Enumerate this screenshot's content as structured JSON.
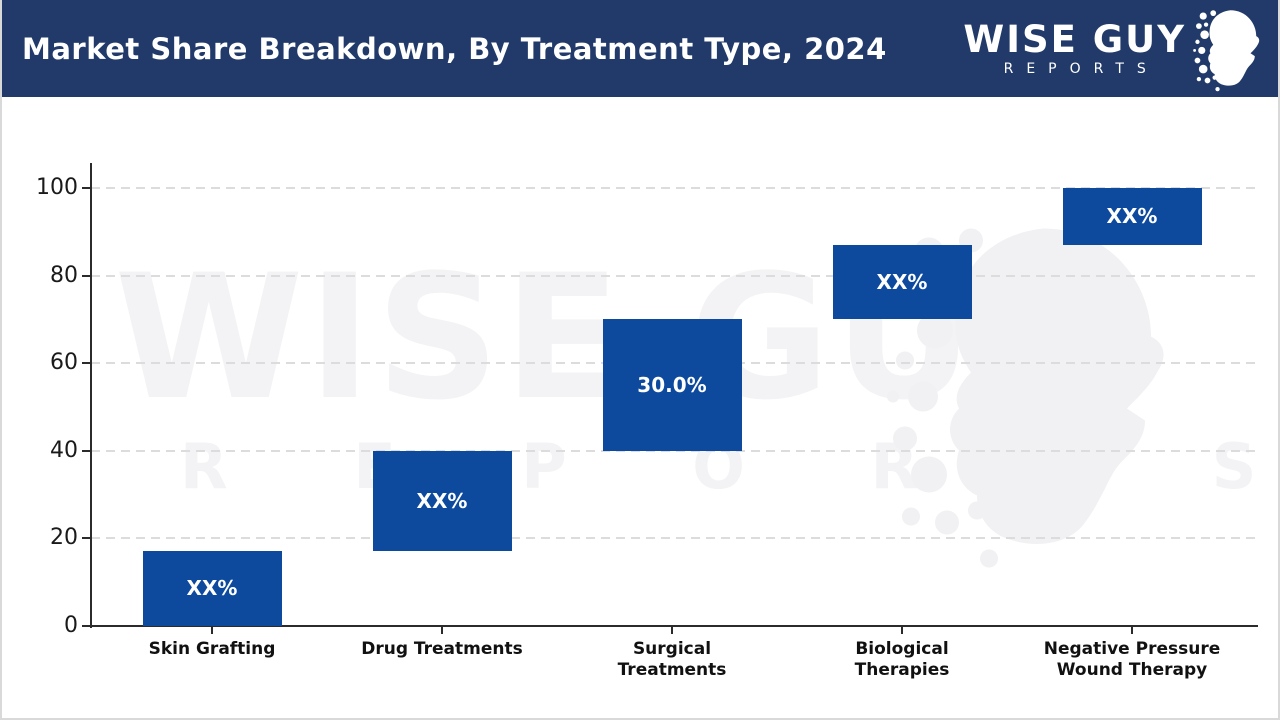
{
  "header": {
    "title": "Market Share Breakdown, By Treatment Type, 2024",
    "logo": {
      "line1": "WISE GUY",
      "line2": "REPORTS"
    }
  },
  "watermark": {
    "line1": "WISE GUY",
    "line2": "R E P O R T S"
  },
  "chart_data": {
    "type": "bar",
    "subtype": "floating-waterfall",
    "title": "Market Share Breakdown, By Treatment Type, 2024",
    "categories": [
      "Skin Grafting",
      "Drug Treatments",
      "Surgical\nTreatments",
      "Biological\nTherapies",
      "Negative Pressure\nWound Therapy"
    ],
    "series": [
      {
        "name": "Market share (%)",
        "base": [
          0,
          17,
          40,
          70,
          87
        ],
        "values": [
          17,
          23,
          30,
          17,
          13
        ],
        "labels": [
          "XX%",
          "XX%",
          "30.0%",
          "XX%",
          "XX%"
        ]
      }
    ],
    "ylim": [
      0,
      100
    ],
    "yticks": [
      0,
      20,
      40,
      60,
      80,
      100
    ],
    "xlabel": "",
    "ylabel": "",
    "legend": "none",
    "grid": "dashed-horizontal",
    "colors": {
      "bar": "#0d4a9e",
      "bar_label": "#ffffff",
      "axis": "#2b2b2b",
      "grid": "#dcdcdc",
      "header_bg": "#213a69",
      "watermark": "#f3f3f5"
    }
  }
}
